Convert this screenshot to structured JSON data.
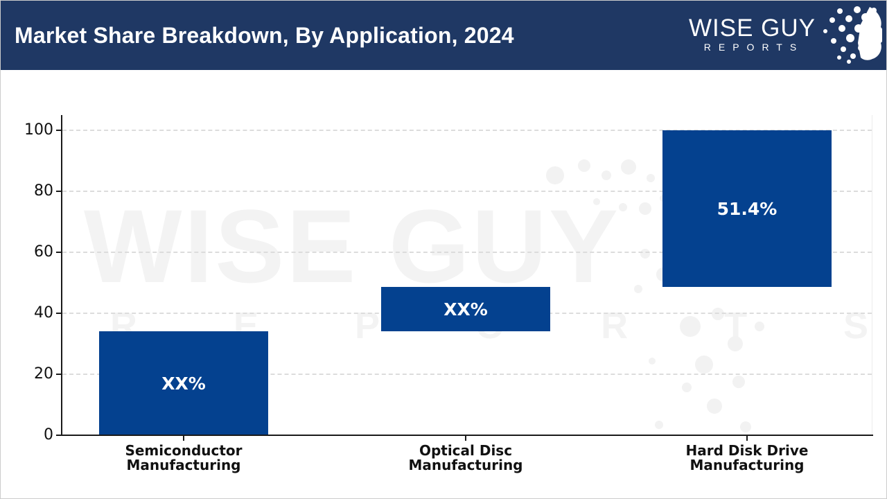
{
  "header": {
    "title": "Market Share Breakdown, By Application, 2024",
    "logo": {
      "line1": "WISE GUY",
      "line2": "REPORTS"
    }
  },
  "watermark": {
    "line1": "WISE GUY",
    "line2": "R E P O R T S"
  },
  "chart_data": {
    "type": "bar",
    "subtype": "waterfall",
    "title": "Market Share Breakdown, By Application, 2024",
    "ylabel": "",
    "xlabel": "",
    "ylim": [
      0,
      100
    ],
    "yticks": [
      0,
      20,
      40,
      60,
      80,
      100
    ],
    "grid": "horizontal dashed",
    "legend": "none",
    "categories": [
      "Semiconductor Manufacturing",
      "Optical Disc Manufacturing",
      "Hard Disk Drive Manufacturing"
    ],
    "bars": [
      {
        "category_line1": "Semiconductor",
        "category_line2": "Manufacturing",
        "label": "XX%",
        "value": 34.0,
        "start": 0,
        "end": 34.0
      },
      {
        "category_line1": "Optical Disc",
        "category_line2": "Manufacturing",
        "label": "XX%",
        "value": 14.6,
        "start": 34.0,
        "end": 48.6
      },
      {
        "category_line1": "Hard Disk Drive",
        "category_line2": "Manufacturing",
        "label": "51.4%",
        "value": 51.4,
        "start": 48.6,
        "end": 100
      }
    ]
  },
  "colors": {
    "header_bg": "#1f3864",
    "bar": "#04418f",
    "axis": "#1a1a1a",
    "grid": "#dcdcdc",
    "watermark": "#f3f3f3",
    "tick_text": "#111111"
  }
}
